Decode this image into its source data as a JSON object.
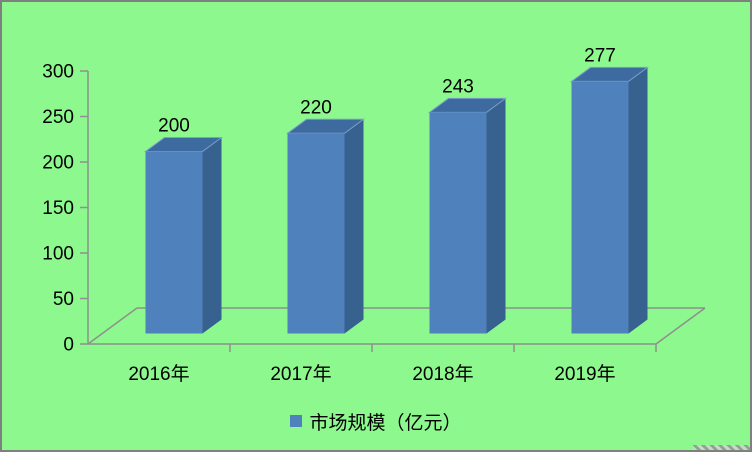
{
  "chart_data": {
    "type": "bar",
    "style": "3d-column",
    "title": "",
    "xlabel": "",
    "ylabel": "",
    "categories": [
      "2016年",
      "2017年",
      "2018年",
      "2019年"
    ],
    "series": [
      {
        "name": "市场规模（亿元）",
        "values": [
          200,
          220,
          243,
          277
        ]
      }
    ],
    "data_labels_shown": true,
    "ylim": [
      0,
      300
    ],
    "yticks": [
      0,
      50,
      100,
      150,
      200,
      250,
      300
    ],
    "grid": false,
    "legend_position": "bottom",
    "colors": {
      "background": "#8df88d",
      "border": "#7f7f7f",
      "axis": "#8f8f8f",
      "bar_front": "#4f81bd",
      "bar_top": "#3e6b9f",
      "bar_side": "#37618f",
      "bar_top_edge": "#7aa0cc",
      "text": "#000000"
    }
  }
}
